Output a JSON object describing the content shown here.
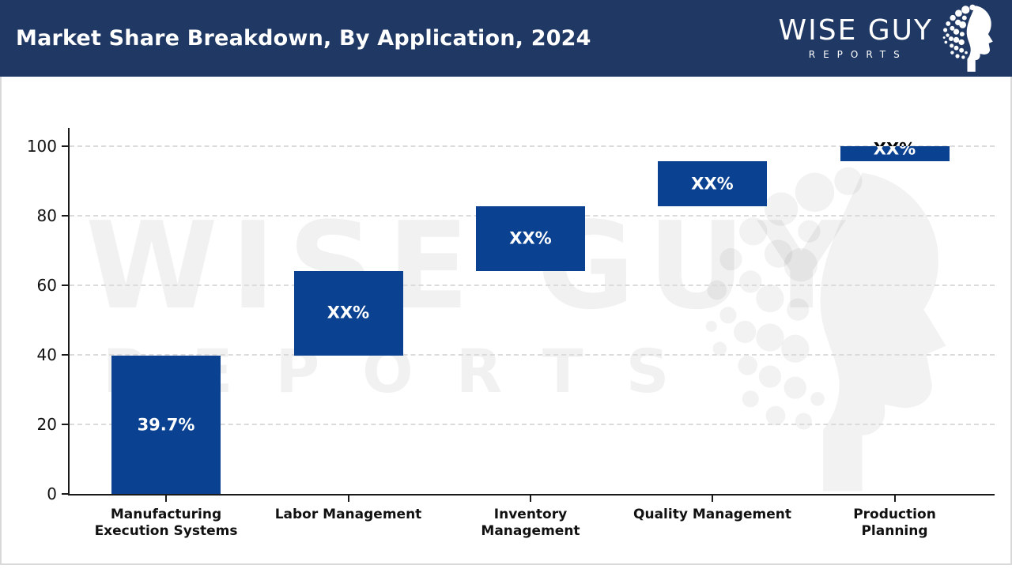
{
  "header": {
    "title": "Market Share Breakdown, By Application, 2024",
    "logo": {
      "line1": "WISE GUY",
      "line2": "REPORTS"
    }
  },
  "watermark": {
    "line1": "WISE GUY",
    "line2": "REPORTS"
  },
  "colors": {
    "header_bg": "#1f3864",
    "bar": "#0a4191",
    "bar_label": "#ffffff",
    "outside_label": "#000000",
    "grid": "#dbdbdb",
    "axis": "#1a1a1a",
    "frame": "#d9d9d9"
  },
  "chart_data": {
    "type": "bar",
    "subtype": "waterfall",
    "title": "Market Share Breakdown, By Application, 2024",
    "xlabel": "",
    "ylabel": "",
    "ylim": [
      0,
      105
    ],
    "grid": "horizontal-dashed",
    "y_ticks": [
      0,
      20,
      40,
      60,
      80,
      100
    ],
    "y_tick_labels": [
      "0",
      "20",
      "40",
      "60",
      "80",
      "100"
    ],
    "categories": [
      "Manufacturing Execution Systems",
      "Labor Management",
      "Inventory Management",
      "Quality Management",
      "Production Planning"
    ],
    "category_lines": [
      [
        "Manufacturing",
        "Execution Systems"
      ],
      [
        "Labor Management"
      ],
      [
        "Inventory",
        "Management"
      ],
      [
        "Quality Management"
      ],
      [
        "Production",
        "Planning"
      ]
    ],
    "segments": [
      {
        "name": "Manufacturing Execution Systems",
        "start": 0,
        "end": 39.7,
        "label": "39.7%"
      },
      {
        "name": "Labor Management",
        "start": 39.7,
        "end": 64.2,
        "label": "XX%"
      },
      {
        "name": "Inventory Management",
        "start": 64.2,
        "end": 82.7,
        "label": "XX%"
      },
      {
        "name": "Quality Management",
        "start": 82.7,
        "end": 95.6,
        "label": "XX%"
      },
      {
        "name": "Production Planning",
        "start": 95.6,
        "end": 100,
        "label": "XX%"
      }
    ]
  }
}
